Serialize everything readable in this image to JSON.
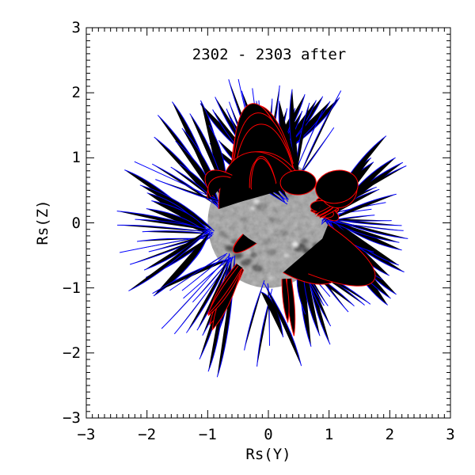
{
  "chart_data": {
    "type": "line",
    "subtype": "solar-coronal-field-line-map",
    "title": "2302 - 2303 after",
    "xlabel": "Rs(Y)",
    "ylabel": "Rs(Z)",
    "xlim": [
      -3,
      3
    ],
    "ylim": [
      -3,
      3
    ],
    "x_ticks": [
      -3,
      -2,
      -1,
      0,
      1,
      2,
      3
    ],
    "y_ticks": [
      -3,
      -2,
      -1,
      0,
      1,
      2,
      3
    ],
    "x_tick_labels": [
      "−3",
      "−2",
      "−1",
      "0",
      "1",
      "2",
      "3"
    ],
    "y_tick_labels": [
      "−3",
      "−2",
      "−1",
      "0",
      "1",
      "2",
      "3"
    ],
    "minor_tick_step": 0.1,
    "grid": false,
    "frame": true,
    "legend": null,
    "colors": {
      "background": "#ffffff",
      "axis": "#000000",
      "open_field": "#0000ff",
      "closed_field": "#ff0000",
      "sun_base": "#989898"
    },
    "sun": {
      "center": [
        0,
        0
      ],
      "radius": 1,
      "description": "photospheric magnetogram disk",
      "dark_patches": [
        {
          "x": -0.62,
          "y": -0.4,
          "rx": 0.1,
          "ry": 0.05,
          "rot": 20,
          "color": "#101010"
        },
        {
          "x": -0.5,
          "y": -0.5,
          "rx": 0.08,
          "ry": 0.05,
          "rot": 0,
          "color": "#101010"
        },
        {
          "x": -0.36,
          "y": -0.6,
          "rx": 0.1,
          "ry": 0.05,
          "rot": -15,
          "color": "#202020"
        },
        {
          "x": -0.25,
          "y": -0.5,
          "rx": 0.06,
          "ry": 0.04,
          "rot": 0,
          "color": "#303030"
        },
        {
          "x": -0.18,
          "y": -0.7,
          "rx": 0.09,
          "ry": 0.05,
          "rot": 10,
          "color": "#202020"
        },
        {
          "x": -0.55,
          "y": -0.28,
          "rx": 0.07,
          "ry": 0.04,
          "rot": 0,
          "color": "#404040"
        },
        {
          "x": -0.75,
          "y": -0.18,
          "rx": 0.08,
          "ry": 0.04,
          "rot": 30,
          "color": "#555555"
        },
        {
          "x": 0.52,
          "y": -0.38,
          "rx": 0.1,
          "ry": 0.06,
          "rot": -10,
          "color": "#101010"
        },
        {
          "x": 0.66,
          "y": -0.45,
          "rx": 0.09,
          "ry": 0.05,
          "rot": 15,
          "color": "#101010"
        },
        {
          "x": 0.6,
          "y": -0.28,
          "rx": 0.06,
          "ry": 0.04,
          "rot": 0,
          "color": "#303030"
        },
        {
          "x": 0.78,
          "y": -0.35,
          "rx": 0.06,
          "ry": 0.05,
          "rot": 0,
          "color": "#202020"
        },
        {
          "x": 0.62,
          "y": -0.85,
          "rx": 0.12,
          "ry": 0.06,
          "rot": -20,
          "color": "#404040"
        },
        {
          "x": 0.42,
          "y": -0.72,
          "rx": 0.07,
          "ry": 0.04,
          "rot": 0,
          "color": "#303030"
        },
        {
          "x": 0.3,
          "y": 0.42,
          "rx": 0.12,
          "ry": 0.04,
          "rot": -10,
          "color": "#555555"
        },
        {
          "x": 0.52,
          "y": 0.5,
          "rx": 0.1,
          "ry": 0.04,
          "rot": 10,
          "color": "#555555"
        },
        {
          "x": -0.12,
          "y": 0.25,
          "rx": 0.1,
          "ry": 0.05,
          "rot": 0,
          "color": "#666666"
        },
        {
          "x": 0.1,
          "y": 0.05,
          "rx": 0.08,
          "ry": 0.04,
          "rot": 0,
          "color": "#666666"
        },
        {
          "x": -0.4,
          "y": 0.05,
          "rx": 0.06,
          "ry": 0.04,
          "rot": 0,
          "color": "#666666"
        },
        {
          "x": 0.25,
          "y": -0.15,
          "rx": 0.07,
          "ry": 0.05,
          "rot": 0,
          "color": "#666666"
        },
        {
          "x": 0.05,
          "y": -0.45,
          "rx": 0.08,
          "ry": 0.05,
          "rot": 0,
          "color": "#555555"
        },
        {
          "x": -0.05,
          "y": -0.3,
          "rx": 0.05,
          "ry": 0.04,
          "rot": 0,
          "color": "#555555"
        }
      ],
      "bright_patches": [
        {
          "x": -0.2,
          "y": 0.33,
          "rx": 0.05,
          "ry": 0.035,
          "rot": 0,
          "color": "#ffffff"
        },
        {
          "x": -0.27,
          "y": 0.22,
          "rx": 0.04,
          "ry": 0.03,
          "rot": 0,
          "color": "#eeeeee"
        },
        {
          "x": 0.44,
          "y": -0.33,
          "rx": 0.05,
          "ry": 0.04,
          "rot": 0,
          "color": "#ffffff"
        },
        {
          "x": 0.3,
          "y": -0.5,
          "rx": 0.04,
          "ry": 0.03,
          "rot": 0,
          "color": "#eeeeee"
        },
        {
          "x": -0.33,
          "y": -0.45,
          "rx": 0.03,
          "ry": 0.03,
          "rot": 0,
          "color": "#dddddd"
        },
        {
          "x": 0.55,
          "y": -0.6,
          "rx": 0.04,
          "ry": 0.03,
          "rot": 0,
          "color": "#eeeeee"
        },
        {
          "x": 0.05,
          "y": -0.85,
          "rx": 0.05,
          "ry": 0.03,
          "rot": 0,
          "color": "#cccccc"
        }
      ]
    },
    "open_field_clusters": [
      {
        "name": "top-bundle",
        "foot": [
          -0.12,
          0.8
        ],
        "spread": 0.1,
        "angle_deg": [
          58,
          122
        ],
        "radius": [
          1.55,
          2.35
        ],
        "count": 22
      },
      {
        "name": "top-cross-bundle",
        "foot": [
          0.28,
          0.35
        ],
        "spread": 0.12,
        "angle_deg": [
          95,
          130
        ],
        "radius": [
          1.5,
          2.1
        ],
        "count": 7
      },
      {
        "name": "upper-left-fan",
        "foot": [
          -0.8,
          0.3
        ],
        "spread": 0.13,
        "angle_deg": [
          118,
          163
        ],
        "radius": [
          1.7,
          2.5
        ],
        "count": 13
      },
      {
        "name": "left-fan",
        "foot": [
          -0.93,
          -0.15
        ],
        "spread": 0.1,
        "angle_deg": [
          160,
          212
        ],
        "radius": [
          1.8,
          2.55
        ],
        "count": 18
      },
      {
        "name": "lower-left-fan",
        "foot": [
          -0.6,
          -0.52
        ],
        "spread": 0.12,
        "angle_deg": [
          208,
          252
        ],
        "radius": [
          1.7,
          2.55
        ],
        "count": 14
      },
      {
        "name": "bottom-fan",
        "foot": [
          0.0,
          -0.95
        ],
        "spread": 0.15,
        "angle_deg": [
          255,
          288
        ],
        "radius": [
          1.6,
          2.35
        ],
        "count": 5
      },
      {
        "name": "lower-right-fan",
        "foot": [
          0.58,
          -0.6
        ],
        "spread": 0.12,
        "angle_deg": [
          288,
          326
        ],
        "radius": [
          1.5,
          2.2
        ],
        "count": 12
      },
      {
        "name": "right-fan",
        "foot": [
          0.97,
          0.08
        ],
        "spread": 0.12,
        "angle_deg": [
          326,
          395
        ],
        "radius": [
          1.7,
          2.5
        ],
        "count": 26
      },
      {
        "name": "upper-right-sparse",
        "foot": [
          0.5,
          0.72
        ],
        "spread": 0.1,
        "angle_deg": [
          48,
          88
        ],
        "radius": [
          1.8,
          2.4
        ],
        "count": 6
      }
    ],
    "closed_field_groups": [
      {
        "type": "arch",
        "name": "big-top-loops",
        "foot1": [
          -0.58,
          0.72
        ],
        "jitter1": 0.08,
        "foot2": [
          0.38,
          0.82
        ],
        "jitter2": 0.1,
        "apex_radius": [
          1.65,
          2.3
        ],
        "count": 5
      },
      {
        "type": "arch",
        "name": "mid-arches",
        "foot1": [
          -0.82,
          0.22
        ],
        "jitter1": 0.06,
        "foot2": [
          0.55,
          0.58
        ],
        "jitter2": 0.08,
        "apex_radius": [
          1.3,
          1.55
        ],
        "count": 2
      },
      {
        "type": "arch",
        "name": "upper-small-arches",
        "foot1": [
          -0.3,
          0.55
        ],
        "jitter1": 0.05,
        "foot2": [
          0.12,
          0.62
        ],
        "jitter2": 0.05,
        "apex_radius": [
          1.05,
          1.3
        ],
        "count": 3
      },
      {
        "type": "arch",
        "name": "left-arches",
        "foot1": [
          -0.95,
          0.4
        ],
        "jitter1": 0.05,
        "foot2": [
          -0.6,
          0.72
        ],
        "jitter2": 0.05,
        "apex_radius": [
          1.15,
          1.4
        ],
        "count": 3
      },
      {
        "type": "ellipse",
        "name": "right-active-region-cluster",
        "center": [
          0.93,
          0.25
        ],
        "center_jitter": [
          0.1,
          0.13
        ],
        "rx": [
          0.06,
          0.22
        ],
        "ry": [
          0.04,
          0.12
        ],
        "rot": [
          -40,
          40
        ],
        "count": 12
      },
      {
        "type": "arch",
        "name": "right-cluster-arches",
        "foot1": [
          0.82,
          0.12
        ],
        "jitter1": 0.06,
        "foot2": [
          1.02,
          0.38
        ],
        "jitter2": 0.06,
        "apex_radius": [
          1.1,
          1.35
        ],
        "count": 8
      },
      {
        "type": "ellipse",
        "name": "right-big-ovals",
        "center": [
          1.15,
          0.5
        ],
        "center_jitter": [
          0.12,
          0.08
        ],
        "rx": [
          0.3,
          0.42
        ],
        "ry": [
          0.2,
          0.3
        ],
        "rot": [
          -30,
          -10
        ],
        "count": 2
      },
      {
        "type": "ellipse",
        "name": "mid-right-oval",
        "center": [
          0.48,
          0.6
        ],
        "center_jitter": [
          0.05,
          0.05
        ],
        "rx": [
          0.25,
          0.3
        ],
        "ry": [
          0.16,
          0.2
        ],
        "rot": [
          -15,
          5
        ],
        "count": 1
      },
      {
        "type": "arch",
        "name": "bottom-right-arches",
        "foot1": [
          0.28,
          -0.72
        ],
        "jitter1": 0.06,
        "foot2": [
          1.0,
          -0.2
        ],
        "jitter2": 0.06,
        "apex_radius": [
          1.5,
          2.0
        ],
        "count": 3
      },
      {
        "type": "arch",
        "name": "right-low-sweep",
        "foot1": [
          1.0,
          -0.02
        ],
        "jitter1": 0.03,
        "foot2": [
          0.7,
          -0.75
        ],
        "jitter2": 0.05,
        "apex_radius": [
          2.1,
          2.3
        ],
        "count": 1
      },
      {
        "type": "hairpin",
        "name": "bottom-left-streamers",
        "foot": [
          -0.48,
          -0.7
        ],
        "jitter": 0.07,
        "angle_deg": [
          225,
          250
        ],
        "length": [
          0.8,
          1.45
        ],
        "width": 0.09,
        "count": 4
      },
      {
        "type": "arch",
        "name": "center-small-loops",
        "foot1": [
          -0.45,
          -0.18
        ],
        "jitter1": 0.04,
        "foot2": [
          -0.22,
          -0.32
        ],
        "jitter2": 0.04,
        "apex_radius": [
          0.75,
          0.9
        ],
        "count": 2
      },
      {
        "type": "hairpin",
        "name": "bottom-center-loops",
        "foot": [
          0.3,
          -0.85
        ],
        "jitter": 0.05,
        "angle_deg": [
          265,
          285
        ],
        "length": [
          0.5,
          0.9
        ],
        "width": 0.07,
        "count": 2
      }
    ]
  }
}
